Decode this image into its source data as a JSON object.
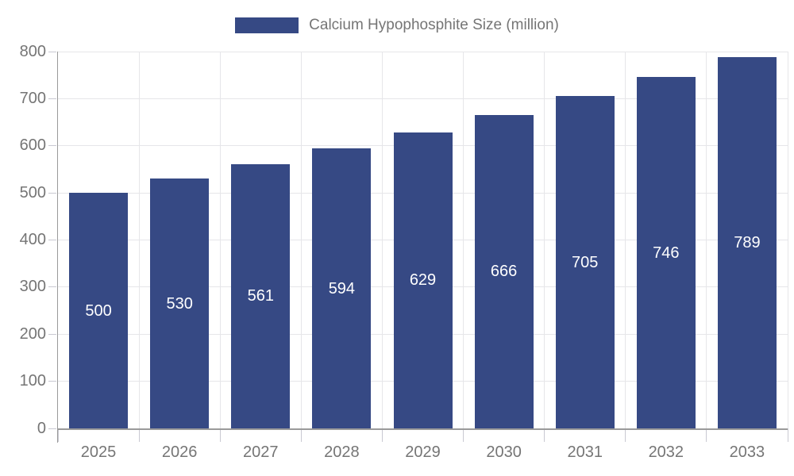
{
  "chart_data": {
    "type": "bar",
    "title": "Calcium Hypophosphite Size (million)",
    "categories": [
      "2025",
      "2026",
      "2027",
      "2028",
      "2029",
      "2030",
      "2031",
      "2032",
      "2033"
    ],
    "values": [
      500,
      530,
      561,
      594,
      629,
      666,
      705,
      746,
      789
    ],
    "xlabel": "",
    "ylabel": "",
    "ylim": [
      0,
      800
    ],
    "yticks": [
      0,
      100,
      200,
      300,
      400,
      500,
      600,
      700,
      800
    ],
    "grid": true,
    "legend_position": "top-center",
    "value_labels": "inside-center"
  },
  "legend": {
    "swatch_icon": "legend-color-swatch"
  },
  "colors": {
    "bar": "#364984",
    "bar_label": "#ffffff",
    "axis_text": "#757575",
    "legend_text": "#757575",
    "grid": "#e6e6e9",
    "axis_line": "#9a9a9a",
    "tick": "#c9c9d2",
    "background": "#ffffff"
  }
}
